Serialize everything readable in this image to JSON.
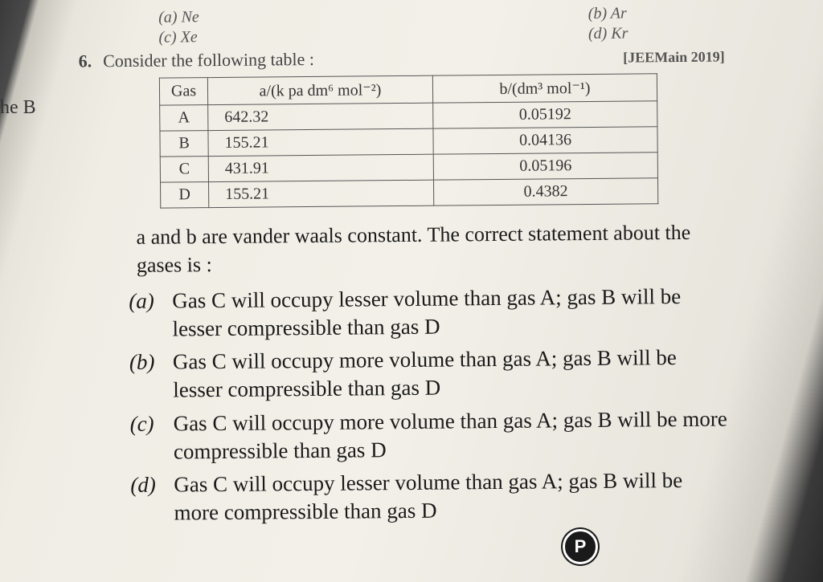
{
  "top_options": {
    "left1": "(a)  Ne",
    "left2": "(c)  Xe",
    "right1": "(b)  Ar",
    "right2": "(d)  Kr"
  },
  "question": {
    "number": "6.",
    "title": "Consider the following table :",
    "exam_tag": "[JEEMain 2019]"
  },
  "table": {
    "headers": [
      "Gas",
      "a/(k pa dm⁶ mol⁻²)",
      "b/(dm³ mol⁻¹)"
    ],
    "rows": [
      [
        "A",
        "642.32",
        "0.05192"
      ],
      [
        "B",
        "155.21",
        "0.04136"
      ],
      [
        "C",
        "431.91",
        "0.05196"
      ],
      [
        "D",
        "155.21",
        "0.4382"
      ]
    ]
  },
  "stem": "a and b are vander waals constant. The correct statement about the gases is :",
  "options": {
    "a": {
      "label": "(a)",
      "text": "Gas C will occupy lesser volume than gas A; gas B will be lesser compressible than gas D"
    },
    "b": {
      "label": "(b)",
      "text": "Gas C will occupy more volume than gas A; gas B will be lesser compressible than gas D"
    },
    "c": {
      "label": "(c)",
      "text": "Gas C will occupy more volume than gas A; gas B will be more compressible than gas D"
    },
    "d": {
      "label": "(d)",
      "text": "Gas C will occupy lesser volume than gas A; gas B will be more compressible than gas D"
    }
  },
  "badge": "P",
  "edge_text": "he\nB"
}
